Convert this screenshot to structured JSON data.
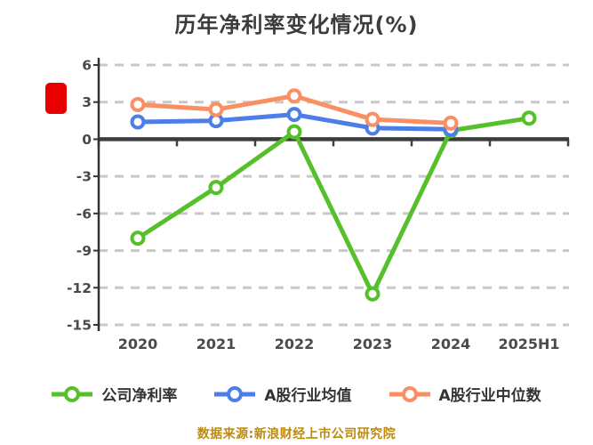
{
  "title": "历年净利率变化情况(%)",
  "badge": {
    "color": "#e80000"
  },
  "chart_data": {
    "type": "line",
    "title": "历年净利率变化情况(%)",
    "categories": [
      "2020",
      "2021",
      "2022",
      "2023",
      "2024",
      "2025H1"
    ],
    "series": [
      {
        "name": "公司净利率",
        "color": "#56c02b",
        "values": [
          -8.0,
          -3.9,
          0.6,
          -12.5,
          0.7,
          1.7
        ]
      },
      {
        "name": "A股行业均值",
        "color": "#4d7ee8",
        "values": [
          1.4,
          1.5,
          2.0,
          0.9,
          0.8,
          null
        ]
      },
      {
        "name": "A股行业中位数",
        "color": "#fa8f63",
        "values": [
          2.8,
          2.4,
          3.5,
          1.6,
          1.3,
          null
        ]
      }
    ],
    "ylim": [
      -15,
      6
    ],
    "yticks": [
      6,
      3,
      0,
      -3,
      -6,
      -9,
      -12,
      -15
    ],
    "xlabel": "",
    "ylabel": "",
    "grid": "horizontal-dashed",
    "zero_axis": "solid-dark",
    "legend_position": "bottom",
    "axis_text_color": "#4a4a4a",
    "grid_color": "#c8c8c8",
    "zero_line_color": "#3d3d3d"
  },
  "footer": {
    "source_note": "数据来源:新浪财经上市公司研究院"
  }
}
